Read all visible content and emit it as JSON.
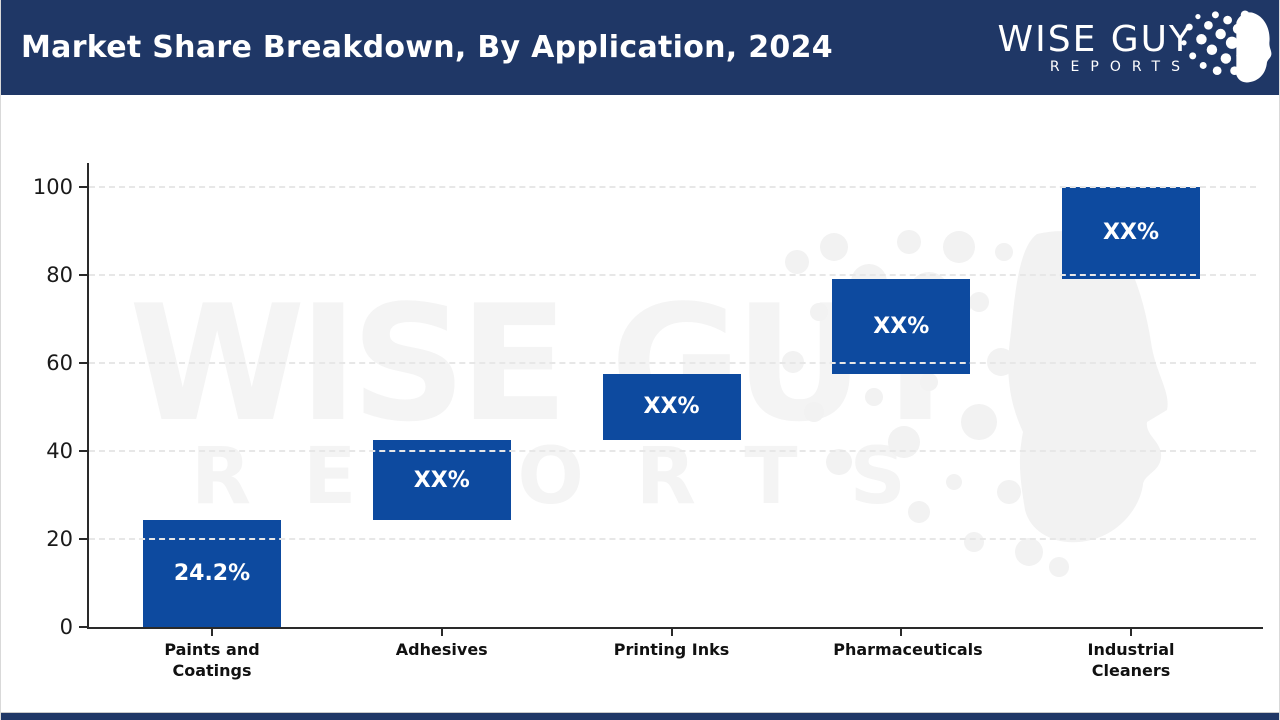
{
  "header": {
    "title": "Market Share Breakdown, By Application, 2024",
    "logo": {
      "line1": "WISE GUY",
      "line2": "REPORTS"
    }
  },
  "watermark": {
    "line1": "WISE GUY",
    "line2": "REPORTS"
  },
  "chart_data": {
    "type": "bar",
    "variant": "floating-waterfall",
    "title": "Market Share Breakdown, By Application, 2024",
    "xlabel": "",
    "ylabel": "",
    "categories": [
      "Paints and Coatings",
      "Adhesives",
      "Printing Inks",
      "Pharmaceuticals",
      "Industrial Cleaners"
    ],
    "bars": [
      {
        "category": "Paints and Coatings",
        "start": 0,
        "end": 24.2,
        "value": 24.2,
        "label": "24.2%"
      },
      {
        "category": "Adhesives",
        "start": 24.2,
        "end": 42.5,
        "value": 18.3,
        "label": "XX%"
      },
      {
        "category": "Printing Inks",
        "start": 42.5,
        "end": 57.5,
        "value": 15.0,
        "label": "XX%"
      },
      {
        "category": "Pharmaceuticals",
        "start": 57.5,
        "end": 79.0,
        "value": 21.5,
        "label": "XX%"
      },
      {
        "category": "Industrial Cleaners",
        "start": 79.0,
        "end": 100.0,
        "value": 21.0,
        "label": "XX%"
      }
    ],
    "ylim": [
      0,
      100
    ],
    "yticks": [
      0,
      20,
      40,
      60,
      80,
      100
    ],
    "grid": "horizontal-dashed",
    "legend": "none",
    "colors": {
      "bar": "#0d4a9f",
      "bar_label": "#ffffff",
      "axis": "#2a2a2a",
      "gridline": "#e7e7e7",
      "tick_label": "#1a1a1a",
      "header_bg": "#1f3766",
      "watermark": "#f4f4f4"
    }
  }
}
